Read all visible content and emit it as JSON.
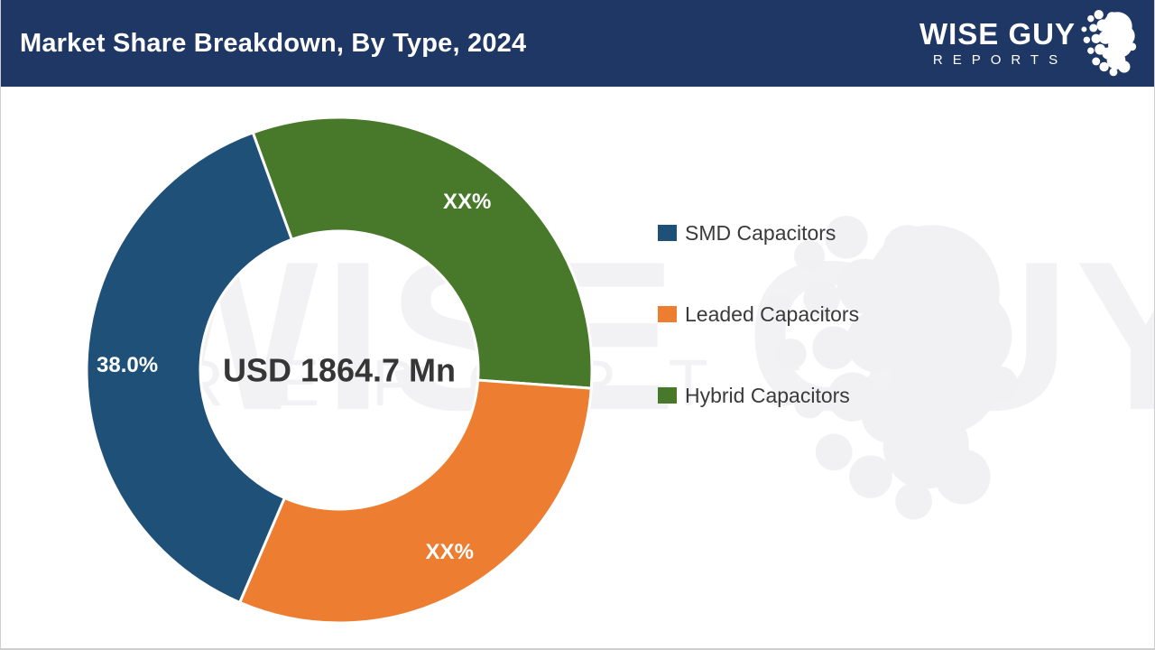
{
  "header": {
    "title": "Market Share Breakdown, By Type, 2024",
    "logo": {
      "line1": "WISE GUY",
      "line2": "REPORTS"
    }
  },
  "watermark": {
    "line1": "WISE GUY",
    "line2": "REPORTS"
  },
  "chart_data": {
    "type": "donut",
    "title": "Market Share Breakdown, By Type, 2024",
    "center_label": "USD 1864.7 Mn",
    "start_angle_deg": -20,
    "inner_radius_ratio": 0.55,
    "legend_position": "right",
    "segments": [
      {
        "name": "SMD Capacitors",
        "label": "38.0%",
        "value": 38.0,
        "color": "#1f5078"
      },
      {
        "name": "Leaded Capacitors",
        "label": "XX%",
        "value": 30.3,
        "color": "#ed7d31"
      },
      {
        "name": "Hybrid Capacitors",
        "label": "XX%",
        "value": 31.7,
        "color": "#48792a"
      }
    ]
  },
  "colors": {
    "header_bg": "#1f3765",
    "page_border": "#cfcfcf",
    "center_text": "#363636",
    "watermark": "#f2f2f4"
  }
}
